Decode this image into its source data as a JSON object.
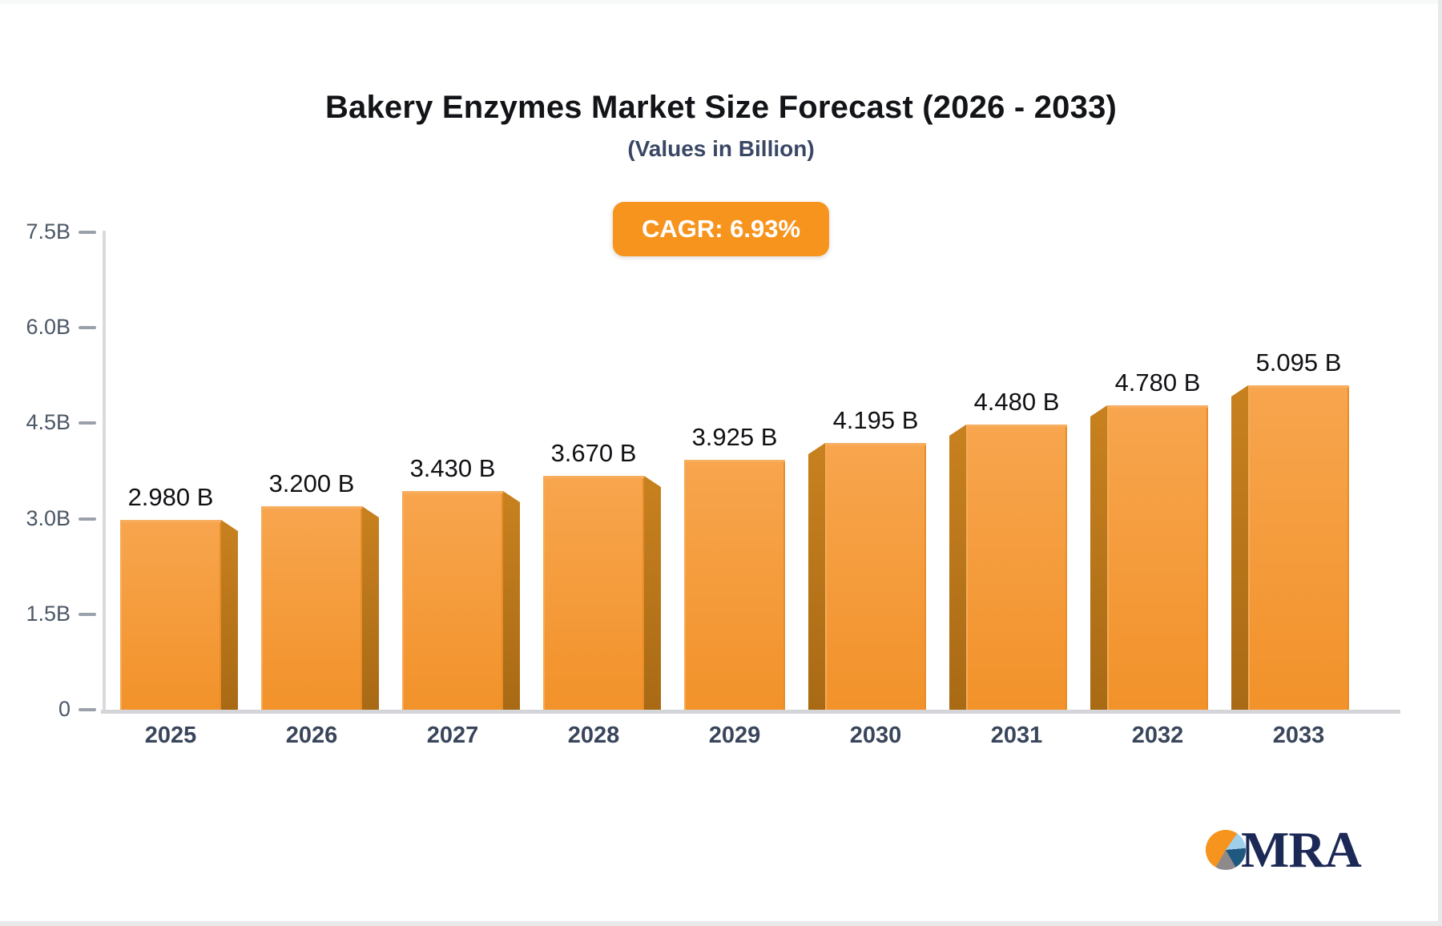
{
  "brand": {
    "name": "MRA"
  },
  "colors": {
    "accent_orange": "#F7941E",
    "bar_face_top": "#f7a54e",
    "bar_face_bottom": "#f2922a",
    "bar_side": "#b2731a",
    "axis_gray": "#d4d5d9",
    "tick_text": "#4c5866",
    "year_text": "#39455a",
    "logo_navy": "#1c2956",
    "logo_lightblue": "#9fcfeb",
    "logo_darkblue": "#20597f",
    "logo_gray": "#8e8a8b"
  },
  "chart_data": {
    "type": "bar",
    "title": "Bakery Enzymes Market Size Forecast (2026 - 2033)",
    "subtitle": "(Values in Billion)",
    "annotation": "CAGR: 6.93%",
    "categories": [
      "2025",
      "2026",
      "2027",
      "2028",
      "2029",
      "2030",
      "2031",
      "2032",
      "2033"
    ],
    "values": [
      2.98,
      3.2,
      3.43,
      3.67,
      3.925,
      4.195,
      4.48,
      4.78,
      5.095
    ],
    "bar_labels": [
      "2.980 B",
      "3.200 B",
      "3.430 B",
      "3.670 B",
      "3.925 B",
      "4.195 B",
      "4.480 B",
      "4.780 B",
      "5.095 B"
    ],
    "xlabel": "",
    "ylabel": "",
    "ylim": [
      0,
      7.5
    ],
    "yticks": [
      {
        "value": 7.5,
        "label": "7.5B"
      },
      {
        "value": 6.0,
        "label": "6.0B"
      },
      {
        "value": 4.5,
        "label": "4.5B"
      },
      {
        "value": 3.0,
        "label": "3.0B"
      },
      {
        "value": 1.5,
        "label": "1.5B"
      },
      {
        "value": 0,
        "label": "0"
      }
    ],
    "grid": false,
    "legend": "none"
  }
}
